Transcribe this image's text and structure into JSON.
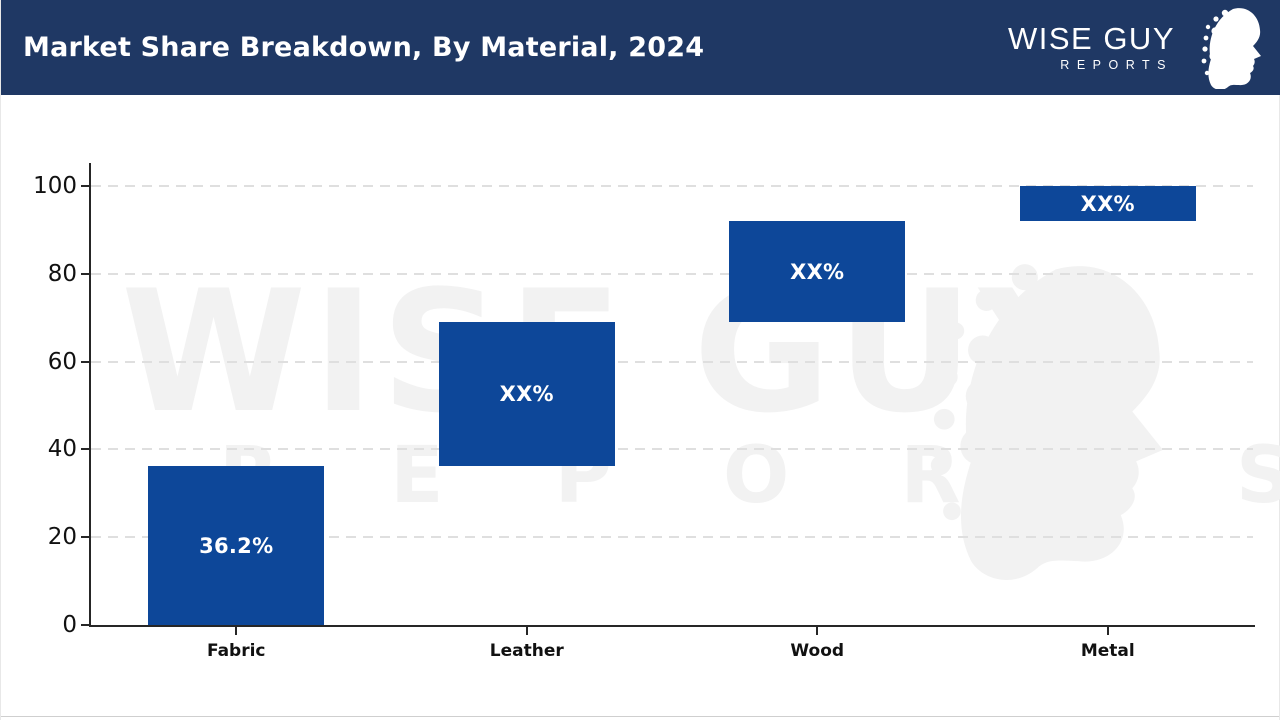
{
  "header": {
    "title": "Market Share Breakdown, By Material, 2024",
    "bg_color": "#1f3864",
    "logo": {
      "line1": "WISE GUY",
      "line2": "REPORTS"
    }
  },
  "watermark": {
    "line1": "WISE GUY",
    "line2": "REPORTS"
  },
  "chart_data": {
    "type": "bar",
    "subtype": "waterfall",
    "title": "Market Share Breakdown, By Material, 2024",
    "categories": [
      "Fabric",
      "Leather",
      "Wood",
      "Metal"
    ],
    "segments": [
      {
        "category": "Fabric",
        "start": 0,
        "end": 36.2,
        "label": "36.2%"
      },
      {
        "category": "Leather",
        "start": 36.2,
        "end": 69,
        "label": "XX%"
      },
      {
        "category": "Wood",
        "start": 69,
        "end": 92,
        "label": "XX%"
      },
      {
        "category": "Metal",
        "start": 92,
        "end": 100,
        "label": "XX%"
      }
    ],
    "yticks": [
      0,
      20,
      40,
      60,
      80,
      100
    ],
    "ylim": [
      0,
      105
    ],
    "grid": "dashed-horizontal",
    "legend": "none",
    "bar_color": "#0d4799",
    "bar_label_color": "#ffffff",
    "axis_color": "#262626",
    "tick_label_color": "#111111"
  }
}
